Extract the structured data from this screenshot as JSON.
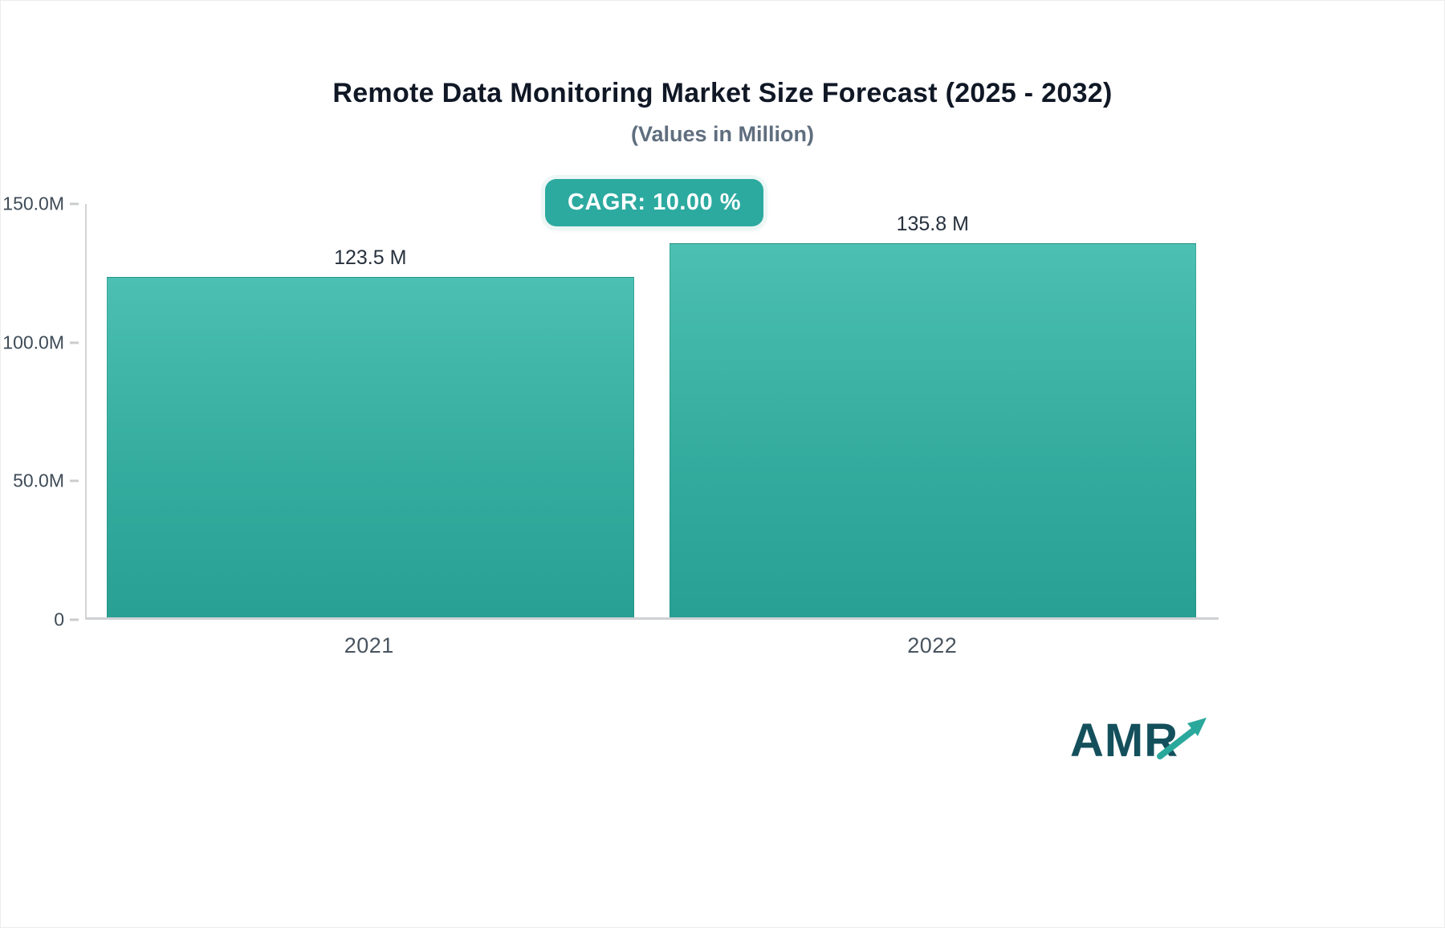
{
  "title": "Remote Data Monitoring Market Size Forecast (2025 - 2032)",
  "subtitle": "(Values in Million)",
  "cagr_badge": "CAGR: 10.00 %",
  "logo": {
    "text": "AMR"
  },
  "colors": {
    "bar_gradient_top": "#4cc0b2",
    "bar_gradient_bottom": "#28a094",
    "badge_background": "#2caaa0",
    "badge_text": "#ffffff",
    "title_text": "#101826",
    "subtitle_text": "#5f6e7e",
    "axis_text": "#3e4b57",
    "logo_text": "#14505c",
    "logo_arrow": "#2aa89c"
  },
  "chart_data": {
    "type": "bar",
    "title": "Remote Data Monitoring Market Size Forecast (2025 - 2032)",
    "subtitle": "(Values in Million)",
    "categories": [
      "2021",
      "2022"
    ],
    "values": [
      123.5,
      135.8
    ],
    "value_labels": [
      "123.5 M",
      "135.8 M"
    ],
    "xlabel": "",
    "ylabel": "",
    "ylim": [
      0,
      150
    ],
    "yticks": [
      "150.0M",
      "100.0M",
      "50.0M",
      "0"
    ],
    "ytick_values": [
      150,
      100,
      50,
      0
    ],
    "grid": false,
    "legend": false,
    "annotations": [
      "CAGR: 10.00 %"
    ]
  }
}
